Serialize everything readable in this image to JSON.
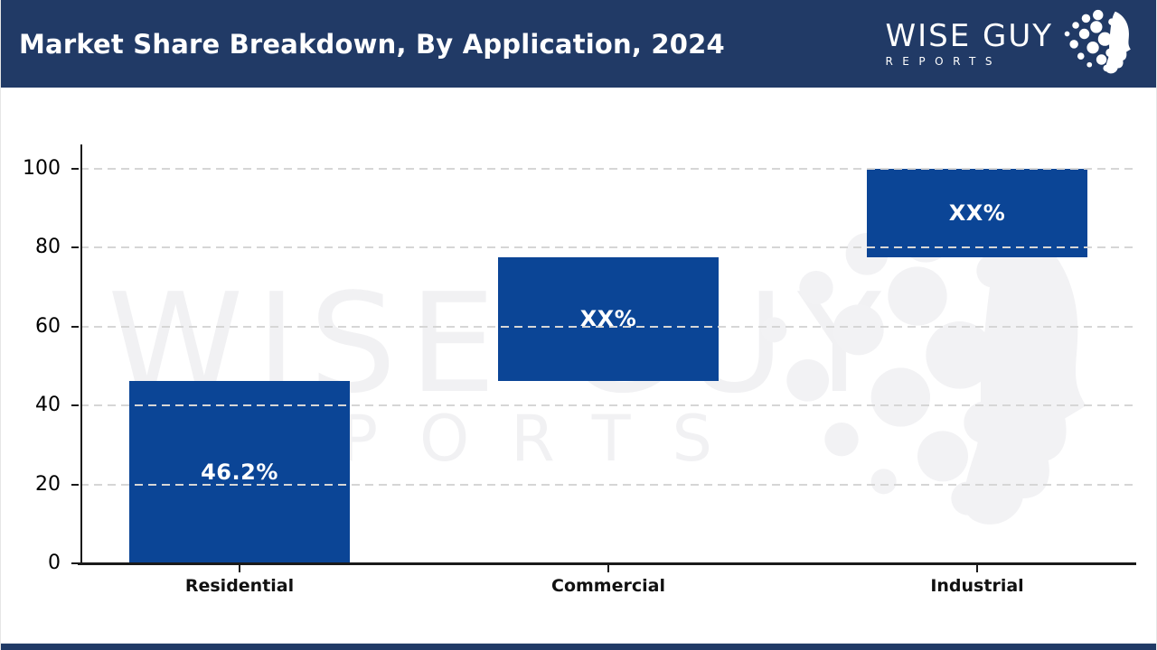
{
  "header": {
    "title": "Market Share Breakdown, By Application, 2024",
    "logo": {
      "wordmark": "WISE GUY",
      "subtext": "REPORTS"
    }
  },
  "watermark": {
    "line1": "WISE GUY",
    "line2": "REPORTS"
  },
  "chart_data": {
    "type": "bar",
    "subtype": "floating-segment (waterfall-style market share)",
    "title": "Market Share Breakdown, By Application, 2024",
    "categories": [
      "Residential",
      "Commercial",
      "Industrial"
    ],
    "series": [
      {
        "name": "Market Share (%)",
        "segments": [
          {
            "category": "Residential",
            "start": 0,
            "end": 46.2,
            "label": "46.2%"
          },
          {
            "category": "Commercial",
            "start": 46.2,
            "end": 77.6,
            "label": "XX%"
          },
          {
            "category": "Industrial",
            "start": 77.6,
            "end": 100,
            "label": "XX%"
          }
        ]
      }
    ],
    "yticks": [
      0,
      20,
      40,
      60,
      80,
      100
    ],
    "ylim": [
      0,
      106
    ],
    "xlabel": "",
    "ylabel": "",
    "grid": "horizontal dashed, drawn over bars",
    "legend": "none"
  },
  "colors": {
    "header_navy": "#213a66",
    "bar_blue": "#0b4596",
    "gridline": "#d6d6d6",
    "axis": "#1a1a1a",
    "bar_label_text": "#ffffff",
    "watermark": "#f1f1f3"
  }
}
